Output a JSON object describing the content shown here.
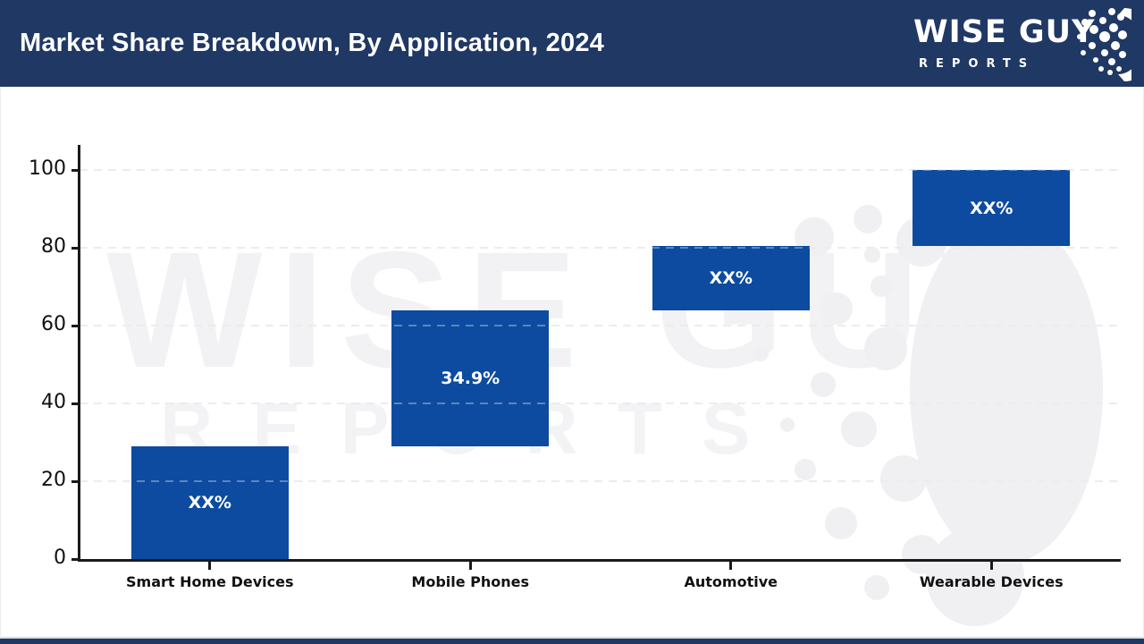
{
  "header": {
    "title": "Market Share Breakdown, By Application, 2024",
    "logo": {
      "wordmark": "WISE GUY",
      "sub": "REPORTS"
    }
  },
  "watermark": {
    "wordmark": "WISE GUY",
    "sub": "REPORTS"
  },
  "chart_data": {
    "type": "bar",
    "subtype": "floating-waterfall",
    "title": "Market Share Breakdown, By Application, 2024",
    "categories": [
      "Smart Home Devices",
      "Mobile Phones",
      "Automotive",
      "Wearable Devices"
    ],
    "segments": [
      {
        "start": 0,
        "end": 29,
        "value": 29,
        "label": "XX%"
      },
      {
        "start": 29,
        "end": 63.9,
        "value": 34.9,
        "label": "34.9%"
      },
      {
        "start": 63.9,
        "end": 80.4,
        "value": 16.5,
        "label": "XX%"
      },
      {
        "start": 80.4,
        "end": 100,
        "value": 19.6,
        "label": "XX%"
      }
    ],
    "xlabel": "",
    "ylabel": "",
    "yticks": [
      0,
      20,
      40,
      60,
      80,
      100
    ],
    "ylim": [
      0,
      106
    ],
    "grid": "dashed-horizontal",
    "legend": "none"
  },
  "colors": {
    "header_bg": "#1F3864",
    "footer_bg": "#1F3864",
    "bar": "#0C4BA0",
    "bar_label": "#FFFFFF",
    "axis": "#1A1A1A",
    "gridline": "#E3E3E3",
    "tick_text": "#111111",
    "watermark": "#F2F2F4"
  }
}
